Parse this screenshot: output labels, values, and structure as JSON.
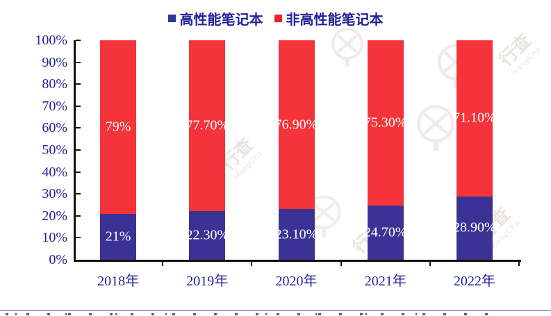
{
  "chart_data": {
    "type": "bar",
    "variant": "100%-stacked-column",
    "title": "",
    "categories": [
      "2018年",
      "2019年",
      "2020年",
      "2021年",
      "2022年"
    ],
    "series": [
      {
        "name": "高性能笔记本",
        "color": "#3c3295",
        "values": [
          21,
          22.3,
          23.1,
          24.7,
          28.9
        ],
        "labels": [
          "21%",
          "22.30%",
          "23.10%",
          "24.70%",
          "28.90%"
        ]
      },
      {
        "name": "非高性能笔记本",
        "color": "#f4343a",
        "values": [
          79,
          77.7,
          76.9,
          75.3,
          71.1
        ],
        "labels": [
          "79%",
          "77.70%",
          "76.90%",
          "75.30%",
          "71.10%"
        ]
      }
    ],
    "y_axis": {
      "min": 0,
      "max": 100,
      "step": 10,
      "tick_labels": [
        "0%",
        "10%",
        "20%",
        "30%",
        "40%",
        "50%",
        "60%",
        "70%",
        "80%",
        "90%",
        "100%"
      ]
    },
    "legend_position": "top",
    "grid": false,
    "stack_order_bottom_to_top": [
      "高性能笔记本",
      "非高性能笔记本"
    ]
  },
  "legend": {
    "items": [
      {
        "label": "高性能笔记本",
        "color": "#32329b"
      },
      {
        "label": "非高性能笔记本",
        "color": "#ee2226"
      }
    ]
  },
  "watermark": {
    "text": "行查",
    "subtext": "HangCha"
  },
  "colors": {
    "axis": "#111111",
    "label_text": "#22229b",
    "bar_label_text": "#ffffff",
    "bar_blue": "#3c3295",
    "bar_red": "#f4343a",
    "divider": "#a5a1c8"
  }
}
